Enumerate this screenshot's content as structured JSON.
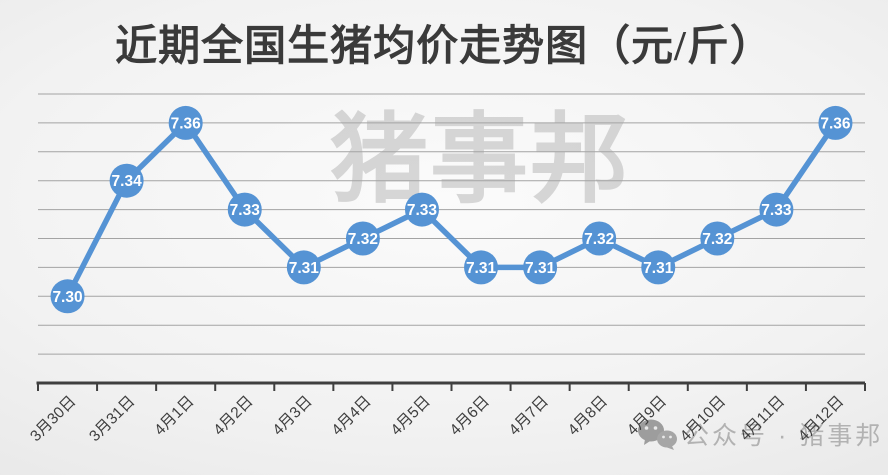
{
  "title": "近期全国生猪均价走势图（元/斤）",
  "watermarks": {
    "center": "猪事邦",
    "bottom": "公众号 · 猪事邦",
    "bottom_icon": "wechat-icon"
  },
  "chart_data": {
    "type": "line",
    "title": "近期全国生猪均价走势图（元/斤）",
    "categories": [
      "3月30日",
      "3月31日",
      "4月1日",
      "4月2日",
      "4月3日",
      "4月4日",
      "4月5日",
      "4月6日",
      "4月7日",
      "4月8日",
      "4月9日",
      "4月10日",
      "4月11日",
      "4月12日"
    ],
    "values": [
      7.3,
      7.34,
      7.36,
      7.33,
      7.31,
      7.32,
      7.33,
      7.31,
      7.31,
      7.32,
      7.31,
      7.32,
      7.33,
      7.36
    ],
    "point_labels": [
      "7.30",
      "7.34",
      "7.36",
      "7.33",
      "7.31",
      "7.32",
      "7.33",
      "7.31",
      "7.31",
      "7.32",
      "7.31",
      "7.32",
      "7.33",
      "7.36"
    ],
    "xlabel": "",
    "ylabel": "",
    "ylim": [
      7.27,
      7.37
    ],
    "grid_step": 0.01,
    "grid": true,
    "legend": false,
    "data_labels": true,
    "y_axis_labels_visible": false,
    "line_color": "#5593d4",
    "marker_color": "#5593d4",
    "data_label_color": "#ffffff",
    "gridline_color": "#a3a3a3",
    "axis_color": "#3f3f3f",
    "tick_label_color": "#3f3f3f"
  }
}
